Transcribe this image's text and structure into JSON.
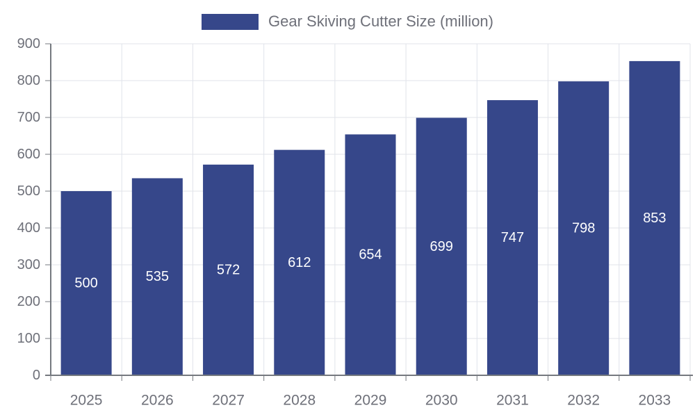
{
  "chart_data": {
    "type": "bar",
    "title": "Gear Skiving Cutter Size (million)",
    "categories": [
      "2025",
      "2026",
      "2027",
      "2028",
      "2029",
      "2030",
      "2031",
      "2032",
      "2033"
    ],
    "series": [
      {
        "name": "Gear Skiving Cutter Size (million)",
        "values": [
          500,
          535,
          572,
          612,
          654,
          699,
          747,
          798,
          853
        ]
      }
    ],
    "xlabel": "",
    "ylabel": "",
    "ylim": [
      0,
      900
    ],
    "yticks": [
      0,
      100,
      200,
      300,
      400,
      500,
      600,
      700,
      800,
      900
    ],
    "grid": true,
    "legend_position": "top-center",
    "colors": {
      "bar": "#36478A",
      "grid_line": "#E0E3EA",
      "axis_line": "#75797F",
      "axis_label": "#6E7079",
      "value_label": "#FFFFFF"
    }
  },
  "legend": {
    "label": "Gear Skiving Cutter Size (million)"
  }
}
